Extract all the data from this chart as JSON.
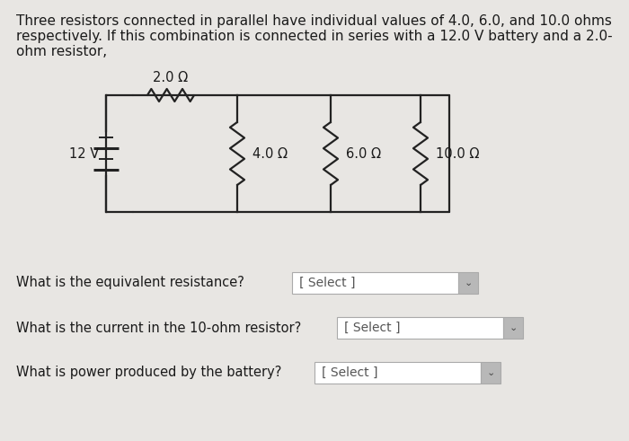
{
  "background_color": "#e8e6e3",
  "title_line1": "Three resistors connected in parallel have individual values of 4.0, 6.0, and 10.0 ohms",
  "title_line2": "respectively. If this combination is connected in series with a 12.0 V battery and a 2.0-",
  "title_line3": "ohm resistor,",
  "q1": "What is the equivalent resistance?",
  "q2": "What is the current in the 10-ohm resistor?",
  "q3": "What is power produced by the battery?",
  "select_text": "[ Select ]",
  "battery_label": "12 V",
  "r_series_label": "2.0 Ω",
  "r1_label": "4.0 Ω",
  "r2_label": "6.0 Ω",
  "r3_label": "10.0 Ω",
  "text_color": "#1a1a1a",
  "wire_color": "#222222",
  "lw": 1.6,
  "title_fontsize": 11.0,
  "label_fontsize": 10.5,
  "q_fontsize": 10.5
}
